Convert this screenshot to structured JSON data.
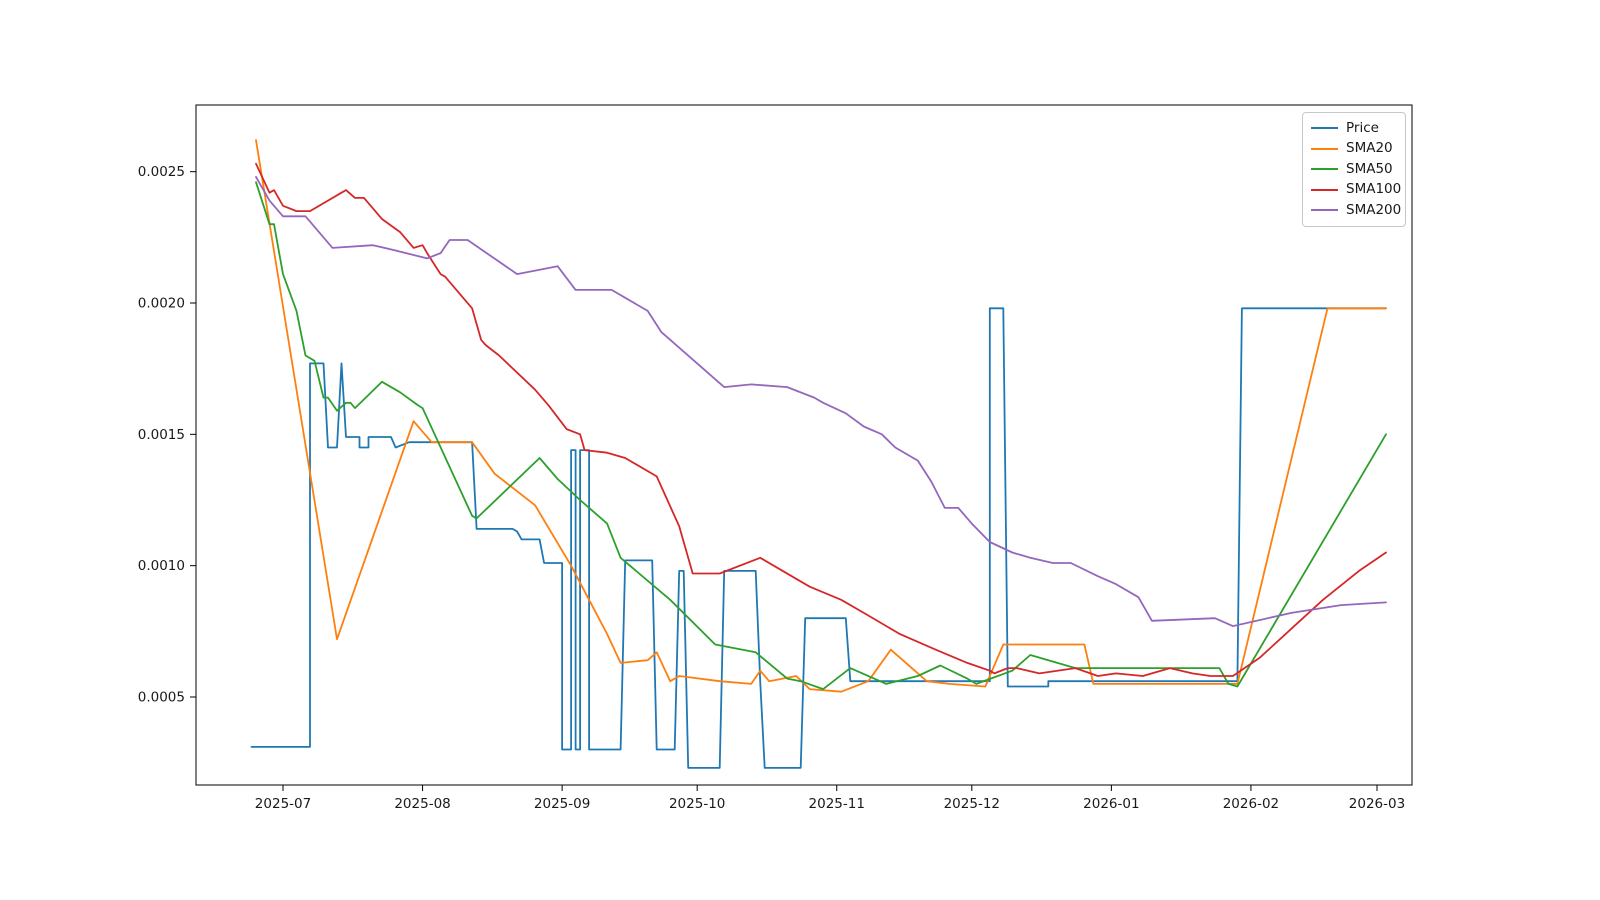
{
  "figure": {
    "background": "#ffffff",
    "axes_edge_color": "#000000",
    "tick_label_color": "#1a1a1a"
  },
  "chart_data": {
    "type": "line",
    "title": "",
    "xlabel": "",
    "ylabel": "",
    "grid": false,
    "x_range": [
      "2025-06-12",
      "2026-03-09"
    ],
    "ylim": [
      0.000165,
      0.00275
    ],
    "x_axis": {
      "ticks": [
        {
          "label": "2025-07",
          "date": "2025-07-01"
        },
        {
          "label": "2025-08",
          "date": "2025-08-01"
        },
        {
          "label": "2025-09",
          "date": "2025-09-01"
        },
        {
          "label": "2025-10",
          "date": "2025-10-01"
        },
        {
          "label": "2025-11",
          "date": "2025-11-01"
        },
        {
          "label": "2025-12",
          "date": "2025-12-01"
        },
        {
          "label": "2026-01",
          "date": "2026-01-01"
        },
        {
          "label": "2026-02",
          "date": "2026-02-01"
        },
        {
          "label": "2026-03",
          "date": "2026-03-01"
        }
      ]
    },
    "y_axis": {
      "ticks": [
        {
          "label": "0.0005",
          "value": 0.0005
        },
        {
          "label": "0.0010",
          "value": 0.001
        },
        {
          "label": "0.0015",
          "value": 0.0015
        },
        {
          "label": "0.0020",
          "value": 0.002
        },
        {
          "label": "0.0025",
          "value": 0.0025
        }
      ]
    },
    "legend": {
      "position": "upper right",
      "entries": [
        "Price",
        "SMA20",
        "SMA50",
        "SMA100",
        "SMA200"
      ]
    },
    "series": [
      {
        "name": "Price",
        "color": "#1f77b4",
        "points": [
          [
            "2025-06-24",
            0.00031
          ],
          [
            "2025-07-07",
            0.00031
          ],
          [
            "2025-07-07",
            0.00177
          ],
          [
            "2025-07-10",
            0.00177
          ],
          [
            "2025-07-11",
            0.00145
          ],
          [
            "2025-07-13",
            0.00145
          ],
          [
            "2025-07-14",
            0.00177
          ],
          [
            "2025-07-15",
            0.00149
          ],
          [
            "2025-07-18",
            0.00149
          ],
          [
            "2025-07-18",
            0.00145
          ],
          [
            "2025-07-20",
            0.00145
          ],
          [
            "2025-07-20",
            0.00149
          ],
          [
            "2025-07-25",
            0.00149
          ],
          [
            "2025-07-26",
            0.00145
          ],
          [
            "2025-07-29",
            0.00147
          ],
          [
            "2025-08-12",
            0.00147
          ],
          [
            "2025-08-13",
            0.00114
          ],
          [
            "2025-08-21",
            0.00114
          ],
          [
            "2025-08-22",
            0.00113
          ],
          [
            "2025-08-23",
            0.0011
          ],
          [
            "2025-08-27",
            0.0011
          ],
          [
            "2025-08-28",
            0.00101
          ],
          [
            "2025-09-01",
            0.00101
          ],
          [
            "2025-09-01",
            0.0003
          ],
          [
            "2025-09-03",
            0.0003
          ],
          [
            "2025-09-03",
            0.00144
          ],
          [
            "2025-09-04",
            0.00144
          ],
          [
            "2025-09-04",
            0.0003
          ],
          [
            "2025-09-05",
            0.0003
          ],
          [
            "2025-09-05",
            0.00144
          ],
          [
            "2025-09-07",
            0.00144
          ],
          [
            "2025-09-07",
            0.0003
          ],
          [
            "2025-09-14",
            0.0003
          ],
          [
            "2025-09-15",
            0.00102
          ],
          [
            "2025-09-21",
            0.00102
          ],
          [
            "2025-09-22",
            0.0003
          ],
          [
            "2025-09-26",
            0.0003
          ],
          [
            "2025-09-27",
            0.00098
          ],
          [
            "2025-09-28",
            0.00098
          ],
          [
            "2025-09-29",
            0.00023
          ],
          [
            "2025-10-06",
            0.00023
          ],
          [
            "2025-10-07",
            0.00098
          ],
          [
            "2025-10-14",
            0.00098
          ],
          [
            "2025-10-15",
            0.00056
          ],
          [
            "2025-10-16",
            0.00023
          ],
          [
            "2025-10-24",
            0.00023
          ],
          [
            "2025-10-25",
            0.0008
          ],
          [
            "2025-11-03",
            0.0008
          ],
          [
            "2025-11-04",
            0.00056
          ],
          [
            "2025-12-05",
            0.00056
          ],
          [
            "2025-12-05",
            0.00198
          ],
          [
            "2025-12-08",
            0.00198
          ],
          [
            "2025-12-09",
            0.00054
          ],
          [
            "2025-12-18",
            0.00054
          ],
          [
            "2025-12-18",
            0.00056
          ],
          [
            "2026-01-29",
            0.00056
          ],
          [
            "2026-01-30",
            0.00198
          ],
          [
            "2026-03-03",
            0.00198
          ]
        ]
      },
      {
        "name": "SMA20",
        "color": "#ff7f0e",
        "points": [
          [
            "2025-06-25",
            0.00262
          ],
          [
            "2025-07-13",
            0.00072
          ],
          [
            "2025-07-30",
            0.00155
          ],
          [
            "2025-08-03",
            0.00147
          ],
          [
            "2025-08-12",
            0.00147
          ],
          [
            "2025-08-17",
            0.00135
          ],
          [
            "2025-08-26",
            0.00123
          ],
          [
            "2025-09-03",
            0.001
          ],
          [
            "2025-09-07",
            0.00087
          ],
          [
            "2025-09-11",
            0.00074
          ],
          [
            "2025-09-14",
            0.00063
          ],
          [
            "2025-09-20",
            0.00064
          ],
          [
            "2025-09-22",
            0.00067
          ],
          [
            "2025-09-25",
            0.00056
          ],
          [
            "2025-09-27",
            0.00058
          ],
          [
            "2025-10-06",
            0.00056
          ],
          [
            "2025-10-13",
            0.00055
          ],
          [
            "2025-10-15",
            0.0006
          ],
          [
            "2025-10-17",
            0.00056
          ],
          [
            "2025-10-23",
            0.00058
          ],
          [
            "2025-10-26",
            0.00053
          ],
          [
            "2025-11-02",
            0.00052
          ],
          [
            "2025-11-08",
            0.00056
          ],
          [
            "2025-11-13",
            0.00068
          ],
          [
            "2025-11-21",
            0.00056
          ],
          [
            "2025-11-26",
            0.00055
          ],
          [
            "2025-12-04",
            0.00054
          ],
          [
            "2025-12-08",
            0.0007
          ],
          [
            "2025-12-26",
            0.0007
          ],
          [
            "2025-12-28",
            0.00055
          ],
          [
            "2026-01-29",
            0.00055
          ],
          [
            "2026-02-18",
            0.00198
          ],
          [
            "2026-03-03",
            0.00198
          ]
        ]
      },
      {
        "name": "SMA50",
        "color": "#2ca02c",
        "points": [
          [
            "2025-06-25",
            0.00246
          ],
          [
            "2025-06-28",
            0.0023
          ],
          [
            "2025-06-29",
            0.0023
          ],
          [
            "2025-07-01",
            0.00211
          ],
          [
            "2025-07-04",
            0.00197
          ],
          [
            "2025-07-06",
            0.0018
          ],
          [
            "2025-07-08",
            0.00178
          ],
          [
            "2025-07-10",
            0.00164
          ],
          [
            "2025-07-11",
            0.00164
          ],
          [
            "2025-07-13",
            0.00159
          ],
          [
            "2025-07-15",
            0.00162
          ],
          [
            "2025-07-16",
            0.00162
          ],
          [
            "2025-07-17",
            0.0016
          ],
          [
            "2025-07-23",
            0.0017
          ],
          [
            "2025-07-27",
            0.00166
          ],
          [
            "2025-07-31",
            0.00161
          ],
          [
            "2025-08-01",
            0.0016
          ],
          [
            "2025-08-12",
            0.00119
          ],
          [
            "2025-08-13",
            0.00118
          ],
          [
            "2025-08-27",
            0.00141
          ],
          [
            "2025-08-31",
            0.00133
          ],
          [
            "2025-09-05",
            0.00125
          ],
          [
            "2025-09-11",
            0.00116
          ],
          [
            "2025-09-14",
            0.00103
          ],
          [
            "2025-09-25",
            0.00087
          ],
          [
            "2025-10-05",
            0.0007
          ],
          [
            "2025-10-14",
            0.00067
          ],
          [
            "2025-10-21",
            0.00057
          ],
          [
            "2025-10-24",
            0.00056
          ],
          [
            "2025-10-29",
            0.00053
          ],
          [
            "2025-11-04",
            0.00061
          ],
          [
            "2025-11-12",
            0.00055
          ],
          [
            "2025-11-19",
            0.00058
          ],
          [
            "2025-11-24",
            0.00062
          ],
          [
            "2025-11-30",
            0.00057
          ],
          [
            "2025-12-02",
            0.00055
          ],
          [
            "2025-12-10",
            0.0006
          ],
          [
            "2025-12-14",
            0.00066
          ],
          [
            "2025-12-24",
            0.00061
          ],
          [
            "2026-01-25",
            0.00061
          ],
          [
            "2026-01-27",
            0.00055
          ],
          [
            "2026-01-29",
            0.00054
          ],
          [
            "2026-03-03",
            0.0015
          ]
        ]
      },
      {
        "name": "SMA100",
        "color": "#d62728",
        "points": [
          [
            "2025-06-25",
            0.00253
          ],
          [
            "2025-06-28",
            0.00242
          ],
          [
            "2025-06-29",
            0.00243
          ],
          [
            "2025-07-01",
            0.00237
          ],
          [
            "2025-07-04",
            0.00235
          ],
          [
            "2025-07-07",
            0.00235
          ],
          [
            "2025-07-14",
            0.00242
          ],
          [
            "2025-07-15",
            0.00243
          ],
          [
            "2025-07-17",
            0.0024
          ],
          [
            "2025-07-19",
            0.0024
          ],
          [
            "2025-07-23",
            0.00232
          ],
          [
            "2025-07-27",
            0.00227
          ],
          [
            "2025-07-30",
            0.00221
          ],
          [
            "2025-08-01",
            0.00222
          ],
          [
            "2025-08-02",
            0.00219
          ],
          [
            "2025-08-05",
            0.00211
          ],
          [
            "2025-08-06",
            0.0021
          ],
          [
            "2025-08-12",
            0.00198
          ],
          [
            "2025-08-14",
            0.00186
          ],
          [
            "2025-08-15",
            0.00184
          ],
          [
            "2025-08-18",
            0.0018
          ],
          [
            "2025-08-26",
            0.00167
          ],
          [
            "2025-08-29",
            0.00161
          ],
          [
            "2025-09-02",
            0.00152
          ],
          [
            "2025-09-05",
            0.0015
          ],
          [
            "2025-09-06",
            0.00144
          ],
          [
            "2025-09-11",
            0.00143
          ],
          [
            "2025-09-15",
            0.00141
          ],
          [
            "2025-09-22",
            0.00134
          ],
          [
            "2025-09-27",
            0.00115
          ],
          [
            "2025-09-30",
            0.00097
          ],
          [
            "2025-10-06",
            0.00097
          ],
          [
            "2025-10-15",
            0.00103
          ],
          [
            "2025-10-19",
            0.00099
          ],
          [
            "2025-10-26",
            0.00092
          ],
          [
            "2025-11-02",
            0.00087
          ],
          [
            "2025-11-07",
            0.00082
          ],
          [
            "2025-11-15",
            0.00074
          ],
          [
            "2025-11-23",
            0.00068
          ],
          [
            "2025-11-30",
            0.00063
          ],
          [
            "2025-12-05",
            0.0006
          ],
          [
            "2025-12-06",
            0.00059
          ],
          [
            "2025-12-09",
            0.00061
          ],
          [
            "2025-12-11",
            0.00061
          ],
          [
            "2025-12-16",
            0.00059
          ],
          [
            "2025-12-24",
            0.00061
          ],
          [
            "2025-12-29",
            0.00058
          ],
          [
            "2026-01-02",
            0.00059
          ],
          [
            "2026-01-08",
            0.00058
          ],
          [
            "2026-01-14",
            0.00061
          ],
          [
            "2026-01-19",
            0.00059
          ],
          [
            "2026-01-23",
            0.00058
          ],
          [
            "2026-01-28",
            0.00058
          ],
          [
            "2026-02-03",
            0.00065
          ],
          [
            "2026-02-10",
            0.00076
          ],
          [
            "2026-02-17",
            0.00087
          ],
          [
            "2026-02-25",
            0.00098
          ],
          [
            "2026-03-03",
            0.00105
          ]
        ]
      },
      {
        "name": "SMA200",
        "color": "#9467bd",
        "points": [
          [
            "2025-06-25",
            0.00248
          ],
          [
            "2025-06-28",
            0.00239
          ],
          [
            "2025-07-01",
            0.00233
          ],
          [
            "2025-07-06",
            0.00233
          ],
          [
            "2025-07-12",
            0.00221
          ],
          [
            "2025-07-21",
            0.00222
          ],
          [
            "2025-07-26",
            0.0022
          ],
          [
            "2025-08-02",
            0.00217
          ],
          [
            "2025-08-05",
            0.00219
          ],
          [
            "2025-08-07",
            0.00224
          ],
          [
            "2025-08-11",
            0.00224
          ],
          [
            "2025-08-22",
            0.00211
          ],
          [
            "2025-08-31",
            0.00214
          ],
          [
            "2025-09-04",
            0.00205
          ],
          [
            "2025-09-12",
            0.00205
          ],
          [
            "2025-09-20",
            0.00197
          ],
          [
            "2025-09-23",
            0.00189
          ],
          [
            "2025-10-07",
            0.00168
          ],
          [
            "2025-10-13",
            0.00169
          ],
          [
            "2025-10-21",
            0.00168
          ],
          [
            "2025-10-27",
            0.00164
          ],
          [
            "2025-10-29",
            0.00162
          ],
          [
            "2025-11-03",
            0.00158
          ],
          [
            "2025-11-07",
            0.00153
          ],
          [
            "2025-11-11",
            0.0015
          ],
          [
            "2025-11-14",
            0.00145
          ],
          [
            "2025-11-19",
            0.0014
          ],
          [
            "2025-11-22",
            0.00132
          ],
          [
            "2025-11-25",
            0.00122
          ],
          [
            "2025-11-28",
            0.00122
          ],
          [
            "2025-12-01",
            0.00116
          ],
          [
            "2025-12-05",
            0.00109
          ],
          [
            "2025-12-10",
            0.00105
          ],
          [
            "2025-12-14",
            0.00103
          ],
          [
            "2025-12-19",
            0.00101
          ],
          [
            "2025-12-23",
            0.00101
          ],
          [
            "2025-12-29",
            0.00096
          ],
          [
            "2026-01-02",
            0.00093
          ],
          [
            "2026-01-07",
            0.00088
          ],
          [
            "2026-01-10",
            0.00079
          ],
          [
            "2026-01-24",
            0.0008
          ],
          [
            "2026-01-28",
            0.00077
          ],
          [
            "2026-02-10",
            0.00082
          ],
          [
            "2026-02-21",
            0.00085
          ],
          [
            "2026-03-03",
            0.00086
          ]
        ]
      }
    ]
  }
}
